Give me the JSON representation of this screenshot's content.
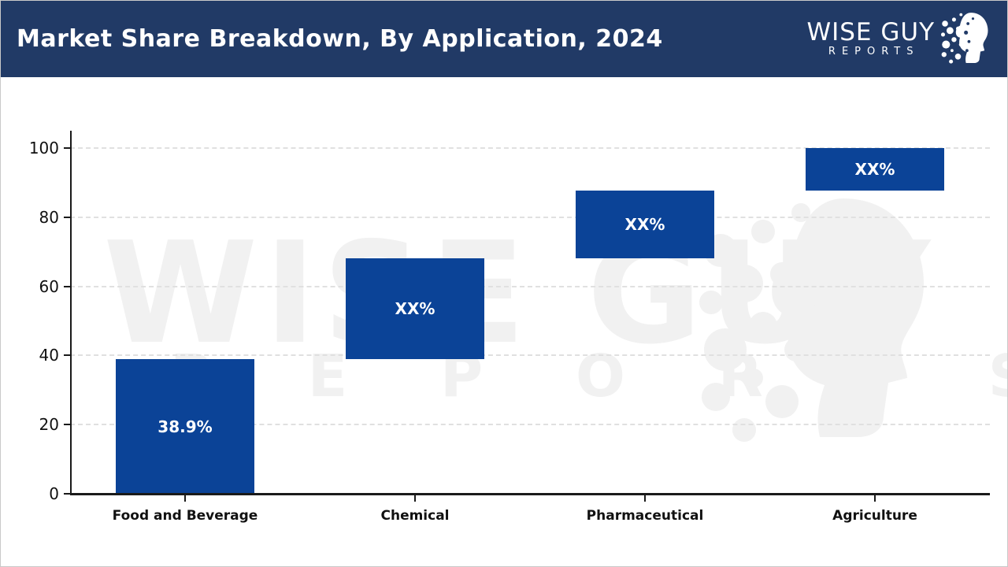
{
  "header": {
    "title": "Market Share Breakdown, By Application, 2024",
    "bg_color": "#213A66",
    "logo": {
      "line1": "WISE GUY",
      "line2": "REPORTS"
    }
  },
  "watermark": {
    "line1": "WISE GUY",
    "line2": "R E P O R T S"
  },
  "chart_data": {
    "type": "bar",
    "subtype": "waterfall-floating-bars",
    "title": "Market Share Breakdown, By Application, 2024",
    "categories": [
      "Food and Beverage",
      "Chemical",
      "Pharmaceutical",
      "Agriculture"
    ],
    "segments": [
      {
        "category": "Food and Beverage",
        "start": 0,
        "end": 38.9,
        "label": "38.9%"
      },
      {
        "category": "Chemical",
        "start": 38.9,
        "end": 68.1,
        "label": "XX%"
      },
      {
        "category": "Pharmaceutical",
        "start": 68.1,
        "end": 87.7,
        "label": "XX%"
      },
      {
        "category": "Agriculture",
        "start": 87.7,
        "end": 100,
        "label": "XX%"
      }
    ],
    "xlabel": "",
    "ylabel": "",
    "ylim": [
      0,
      100
    ],
    "yticks": [
      0,
      20,
      40,
      60,
      80,
      100
    ],
    "grid": "horizontal-dashed",
    "legend": "none",
    "bar_color": "#0B4397",
    "bar_label_color": "#ffffff",
    "axis_color": "#1a1a1a",
    "gridline_color": "#e0e0e0"
  }
}
